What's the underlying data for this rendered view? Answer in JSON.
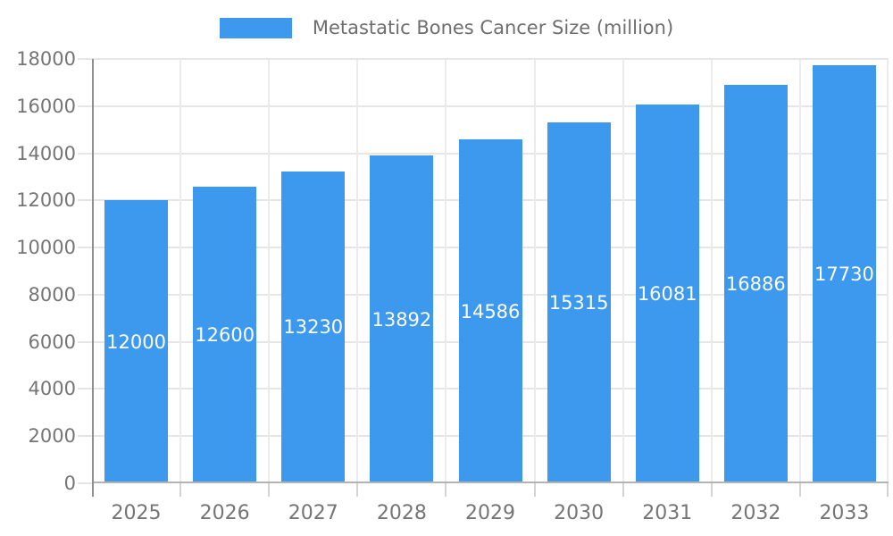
{
  "legend": {
    "label": "Metastatic Bones Cancer Size (million)"
  },
  "chart_data": {
    "type": "bar",
    "title": "Metastatic Bones Cancer Size (million)",
    "categories": [
      "2025",
      "2026",
      "2027",
      "2028",
      "2029",
      "2030",
      "2031",
      "2032",
      "2033"
    ],
    "values": [
      12000,
      12600,
      13230,
      13892,
      14586,
      15315,
      16081,
      16886,
      17730
    ],
    "value_labels": [
      "12000",
      "12600",
      "13230",
      "13892",
      "14586",
      "15315",
      "16081",
      "16886",
      "17730"
    ],
    "ylim": [
      0,
      18000
    ],
    "yticks": [
      0,
      2000,
      4000,
      6000,
      8000,
      10000,
      12000,
      14000,
      16000,
      18000
    ],
    "ytick_labels": [
      "0",
      "2000",
      "4000",
      "6000",
      "8000",
      "10000",
      "12000",
      "14000",
      "16000",
      "18000"
    ],
    "grid": true,
    "legend_position": "top",
    "bar_color": "#3c99ee",
    "bar_label_color": "#ffffff",
    "axis_label_color": "#757575"
  }
}
